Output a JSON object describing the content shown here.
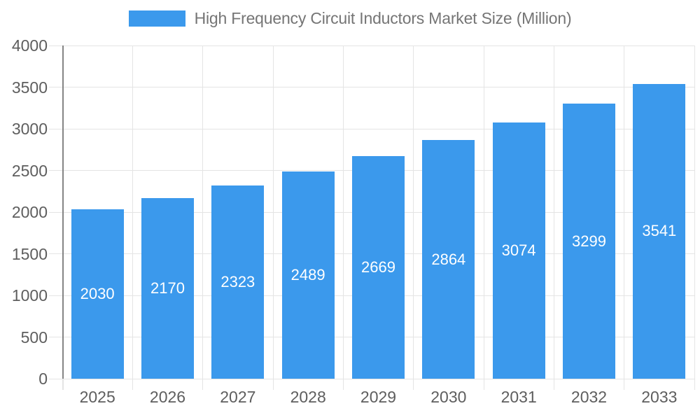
{
  "chart_data": {
    "type": "bar",
    "title": "High Frequency Circuit Inductors Market Size (Million)",
    "categories": [
      "2025",
      "2026",
      "2027",
      "2028",
      "2029",
      "2030",
      "2031",
      "2032",
      "2033"
    ],
    "series": [
      {
        "name": "High Frequency Circuit Inductors Market Size (Million)",
        "values": [
          2030,
          2170,
          2323,
          2489,
          2669,
          2864,
          3074,
          3299,
          3541
        ]
      }
    ],
    "value_labels_shown": true,
    "xlabel": "",
    "ylabel": "",
    "ylim": [
      0,
      4000
    ],
    "yticks": [
      0,
      500,
      1000,
      1500,
      2000,
      2500,
      3000,
      3500,
      4000
    ],
    "grid": true,
    "legend_position": "top-center",
    "colors": {
      "bar": "#3B99EC",
      "bar_value_text": "#FFFFFF",
      "axis_text": "#5E5E5E",
      "legend_text": "#757575",
      "gridline": "#E4E4E4",
      "y_axis_line": "#848484",
      "baseline": "#9B9B9B",
      "background": "#FFFFFF"
    }
  }
}
